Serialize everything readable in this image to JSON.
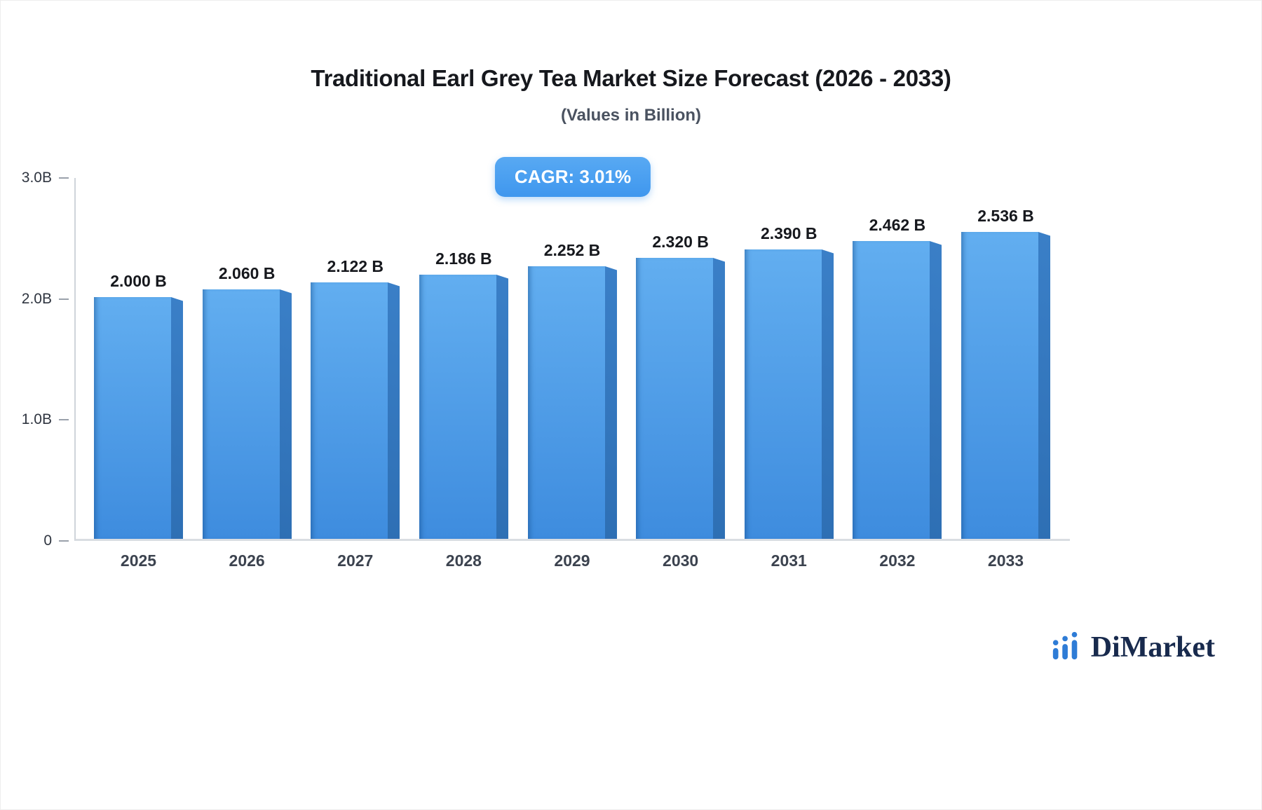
{
  "chart_data": {
    "type": "bar",
    "title": "Traditional Earl Grey Tea Market Size Forecast (2026 - 2033)",
    "subtitle": "(Values in Billion)",
    "badge": "CAGR: 3.01%",
    "categories": [
      "2025",
      "2026",
      "2027",
      "2028",
      "2029",
      "2030",
      "2031",
      "2032",
      "2033"
    ],
    "values": [
      2.0,
      2.06,
      2.122,
      2.186,
      2.252,
      2.32,
      2.39,
      2.462,
      2.536
    ],
    "value_labels": [
      "2.000 B",
      "2.060 B",
      "2.122 B",
      "2.186 B",
      "2.252 B",
      "2.320 B",
      "2.390 B",
      "2.462 B",
      "2.536 B"
    ],
    "xlabel": "",
    "ylabel": "",
    "ylim": [
      0,
      3.0
    ],
    "yticks": [
      {
        "value": 3.0,
        "label": "3.0B"
      },
      {
        "value": 2.0,
        "label": "2.0B"
      },
      {
        "value": 1.0,
        "label": "1.0B"
      },
      {
        "value": 0,
        "label": "0"
      }
    ],
    "grid": false,
    "legend": null,
    "bar_color_top": "#62AEF0",
    "bar_color_bottom": "#3E8CDE",
    "bar_side_color": "#2E6FB4",
    "accent_color": "#3F97EE"
  },
  "logo": {
    "text": "DiMarket",
    "icon": "bar-chart-icon",
    "text_color": "#182A4D",
    "icon_color": "#2E7CD6"
  }
}
